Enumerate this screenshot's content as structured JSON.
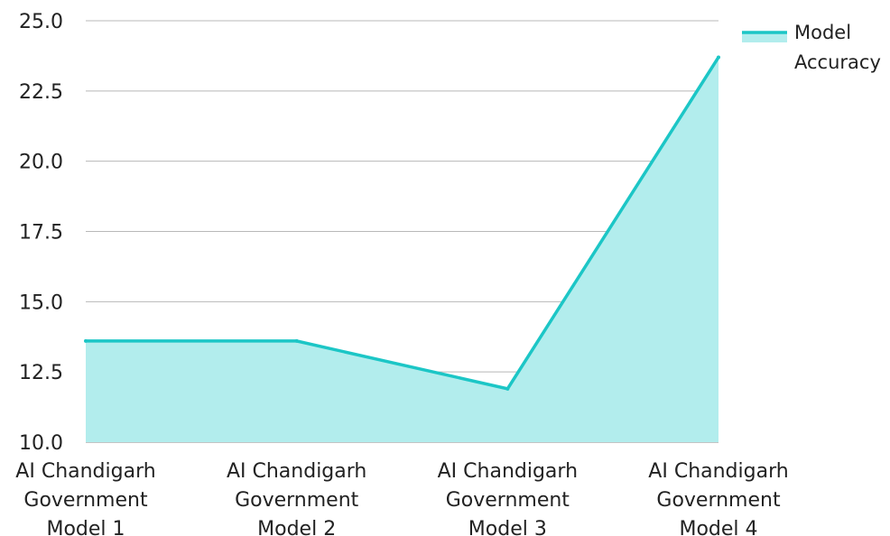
{
  "chart_data": {
    "type": "area",
    "title": "",
    "xlabel": "",
    "ylabel": "",
    "categories": [
      [
        "AI Chandigarh",
        "Government",
        "Model 1"
      ],
      [
        "AI Chandigarh",
        "Government",
        "Model 2"
      ],
      [
        "AI Chandigarh",
        "Government",
        "Model 3"
      ],
      [
        "AI Chandigarh",
        "Government",
        "Model 4"
      ]
    ],
    "series": [
      {
        "name": "Model Accuracy",
        "values": [
          13.6,
          13.6,
          11.9,
          23.7
        ],
        "line_color": "#1cc6c6",
        "fill_color": "#b2eded"
      }
    ],
    "ylim": [
      10.0,
      25.0
    ],
    "yticks": [
      "10.0",
      "12.5",
      "15.0",
      "17.5",
      "20.0",
      "22.5",
      "25.0"
    ],
    "grid": true,
    "legend": {
      "position": "top-right",
      "lines": [
        "Model",
        "Accuracy"
      ]
    }
  }
}
